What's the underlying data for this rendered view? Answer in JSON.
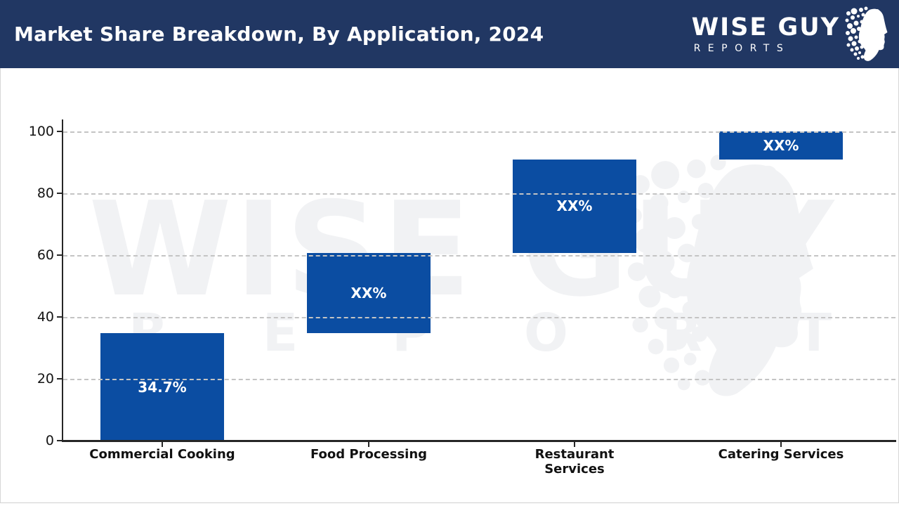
{
  "header": {
    "title": "Market Share Breakdown, By Application, 2024",
    "logo": {
      "name": "WISE GUY",
      "sub": "REPORTS"
    }
  },
  "watermark": {
    "line1": "WISE GUY",
    "line2": "R E P O R T S"
  },
  "colors": {
    "header_bg": "#213763",
    "bar": "#0B4DA2",
    "axis": "#262626",
    "grid": "#C4C4C4",
    "watermark": "#F1F2F4",
    "bar_label_text": "#FFFFFF",
    "title_text": "#FFFFFF"
  },
  "chart_data": {
    "type": "bar",
    "variant": "waterfall",
    "title": "Market Share Breakdown, By Application, 2024",
    "unit": "%",
    "categories": [
      "Commercial Cooking",
      "Food Processing",
      "Restaurant Services",
      "Catering Services"
    ],
    "xtick_labels": [
      "Commercial Cooking",
      "Food Processing",
      "Restaurant\nServices",
      "Catering Services"
    ],
    "series": [
      {
        "name": "Market Share",
        "segments": [
          {
            "category": "Commercial Cooking",
            "start": 0,
            "end": 34.7,
            "value_label": "34.7%"
          },
          {
            "category": "Food Processing",
            "start": 34.7,
            "end": 60.7,
            "value_label": "XX%"
          },
          {
            "category": "Restaurant Services",
            "start": 60.7,
            "end": 91.0,
            "value_label": "XX%"
          },
          {
            "category": "Catering Services",
            "start": 91.0,
            "end": 100.0,
            "value_label": "XX%"
          }
        ]
      }
    ],
    "yticks": [
      0,
      20,
      40,
      60,
      80,
      100
    ],
    "ylim": [
      0,
      103
    ],
    "grid": "horizontal-dashed",
    "legend": null,
    "masked_value_label": "XX%"
  }
}
